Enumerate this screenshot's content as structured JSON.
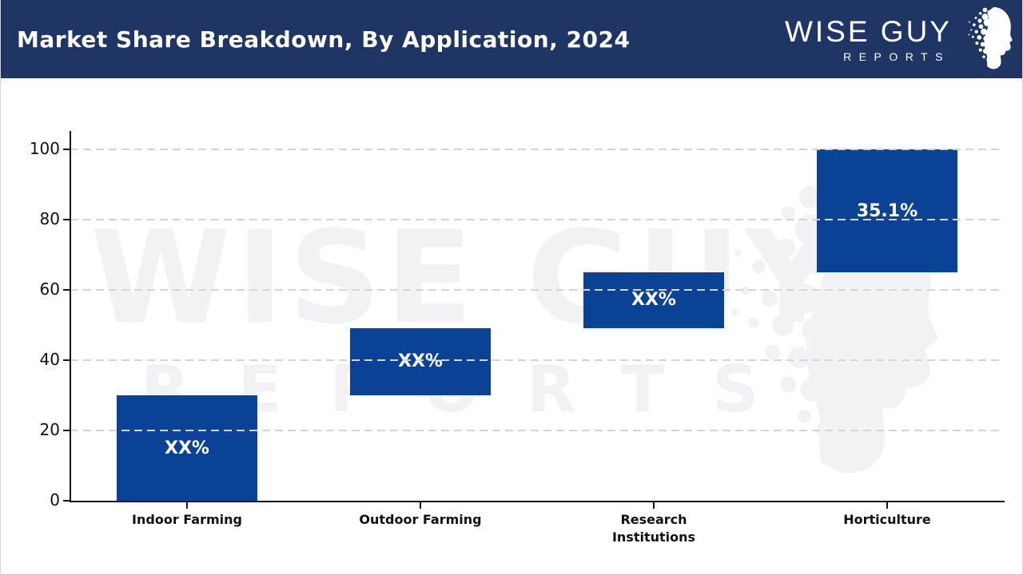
{
  "header": {
    "title": "Market Share Breakdown, By Application, 2024",
    "logo": {
      "line1": "WISE GUY",
      "line2": "REPORTS"
    }
  },
  "watermark": {
    "line1": "WISE GUY",
    "line2": "REPORTS"
  },
  "chart_data": {
    "type": "bar",
    "subtype": "floating-waterfall",
    "title": "Market Share Breakdown, By Application, 2024",
    "categories": [
      "Indoor Farming",
      "Outdoor Farming",
      "Research\nInstitutions",
      "Horticulture"
    ],
    "bars": [
      {
        "category": "Indoor Farming",
        "start": 0,
        "end": 30,
        "label": "XX%"
      },
      {
        "category": "Outdoor Farming",
        "start": 30,
        "end": 49.1,
        "label": "XX%"
      },
      {
        "category": "Research Institutions",
        "start": 49.2,
        "end": 64.9,
        "label": "XX%"
      },
      {
        "category": "Horticulture",
        "start": 64.9,
        "end": 100,
        "label": "35.1%"
      }
    ],
    "ylim": [
      0,
      100
    ],
    "yticks": [
      0,
      20,
      40,
      60,
      80,
      100
    ],
    "grid": "horizontal-dashed",
    "legend": "none",
    "xlabel": "",
    "ylabel": ""
  },
  "colors": {
    "header_bg": "#1f3564",
    "bar": "#0a4396",
    "bar_label": "#ffffff",
    "grid": "#d4d4d4",
    "axis": "#161616",
    "watermark": "#f2f2f5"
  }
}
